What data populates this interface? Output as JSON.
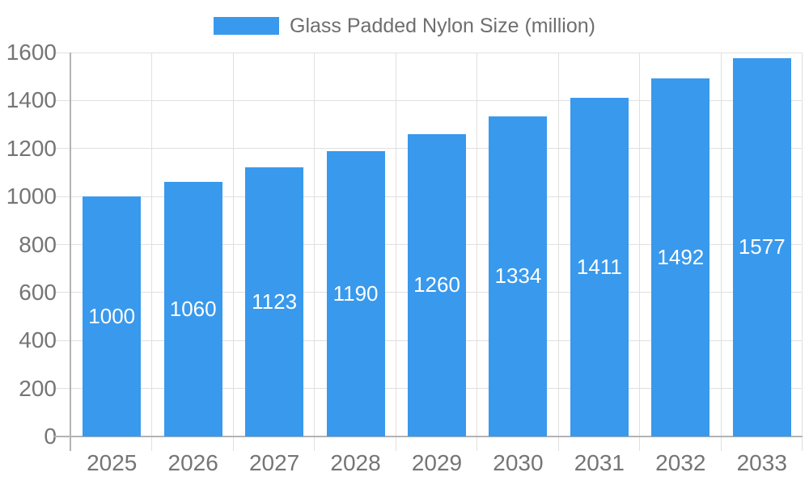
{
  "chart_data": {
    "type": "bar",
    "title": "Glass Padded Nylon Size (million)",
    "legend": [
      "Glass Padded Nylon Size (million)"
    ],
    "legend_position": "top-center",
    "categories": [
      "2025",
      "2026",
      "2027",
      "2028",
      "2029",
      "2030",
      "2031",
      "2032",
      "2033"
    ],
    "series": [
      {
        "name": "Glass Padded Nylon Size (million)",
        "values": [
          1000,
          1060,
          1123,
          1190,
          1260,
          1334,
          1411,
          1492,
          1577
        ]
      }
    ],
    "xlabel": "",
    "ylabel": "",
    "ylim": [
      0,
      1600
    ],
    "yticks": [
      0,
      200,
      400,
      600,
      800,
      1000,
      1200,
      1400,
      1600
    ],
    "grid": true,
    "value_label_position": "inside-center",
    "colors": {
      "bar": "#3999ec",
      "grid": "#e0e0e0",
      "axis": "#b3b3b3",
      "tick_text": "#757575",
      "legend_text": "#6e6e6e",
      "value_text": "#ffffff",
      "background": "#ffffff"
    }
  }
}
